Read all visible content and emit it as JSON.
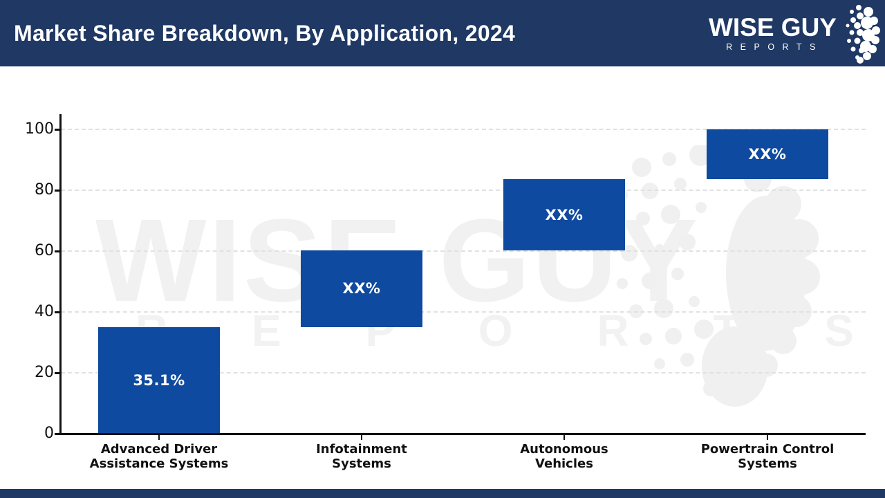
{
  "header": {
    "title": "Market Share Breakdown, By Application, 2024",
    "logo": {
      "line1": "WISE GUY",
      "line2": "REPORTS"
    }
  },
  "watermark": {
    "line1": "WISE GUY",
    "line2": "R E P O R T S"
  },
  "colors": {
    "header_bg": "#1f3864",
    "footer_bg": "#1f3864",
    "bar": "#0e4a9f",
    "grid": "#e1e1e1",
    "axis": "#111111",
    "bar_label_text": "#ffffff",
    "watermark": "#f1f1f1"
  },
  "chart_data": {
    "type": "bar",
    "subtype": "floating-waterfall",
    "title": "Market Share Breakdown, By Application, 2024",
    "xlabel": "",
    "ylabel": "",
    "ylim": [
      0,
      105
    ],
    "grid": "horizontal-dashed",
    "legend": "none",
    "y_ticks": [
      0,
      20,
      40,
      60,
      80,
      100
    ],
    "categories": [
      "Advanced Driver\nAssistance Systems",
      "Infotainment\nSystems",
      "Autonomous\nVehicles",
      "Powertrain Control\nSystems"
    ],
    "segments": [
      {
        "category": "Advanced Driver Assistance Systems",
        "start": 0,
        "end": 35.1,
        "size": 35.1,
        "label": "35.1%"
      },
      {
        "category": "Infotainment Systems",
        "start": 35.1,
        "end": 60.2,
        "size": 25.1,
        "label": "XX%"
      },
      {
        "category": "Autonomous Vehicles",
        "start": 60.2,
        "end": 83.6,
        "size": 23.4,
        "label": "XX%"
      },
      {
        "category": "Powertrain Control Systems",
        "start": 83.6,
        "end": 100,
        "size": 16.4,
        "label": "XX%"
      }
    ]
  }
}
